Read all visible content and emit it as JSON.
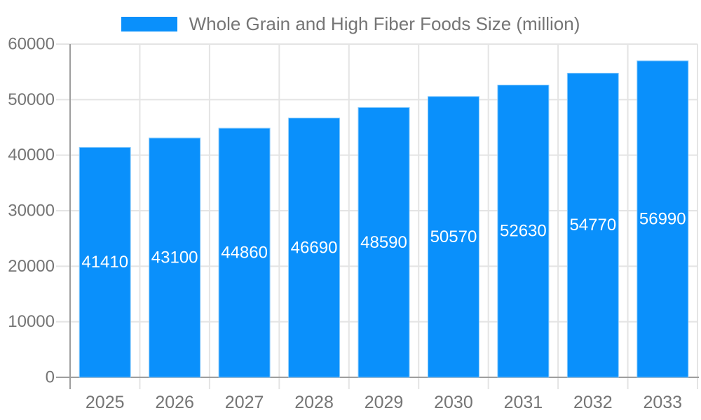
{
  "legend": {
    "label": "Whole Grain and High Fiber Foods Size (million)"
  },
  "chart_data": {
    "type": "bar",
    "title": "Whole Grain and High Fiber Foods Size (million)",
    "categories": [
      "2025",
      "2026",
      "2027",
      "2028",
      "2029",
      "2030",
      "2031",
      "2032",
      "2033"
    ],
    "series": [
      {
        "name": "Whole Grain and High Fiber Foods Size (million)",
        "values": [
          41410,
          43100,
          44860,
          46690,
          48590,
          50570,
          52630,
          54770,
          56990
        ]
      }
    ],
    "xlabel": "",
    "ylabel": "",
    "ylim": [
      0,
      60000
    ],
    "yticks": [
      0,
      10000,
      20000,
      30000,
      40000,
      50000,
      60000
    ],
    "grid": true,
    "legend_position": "top",
    "value_labels_position": "inside-center"
  },
  "colors": {
    "bar": "#0a90fb",
    "bar_edge": "#8ecdfc",
    "gridline": "#e4e4e4",
    "axis_line": "#9e9e9e",
    "tick_label": "#757575",
    "value_label": "#ffffff",
    "background": "#ffffff"
  }
}
